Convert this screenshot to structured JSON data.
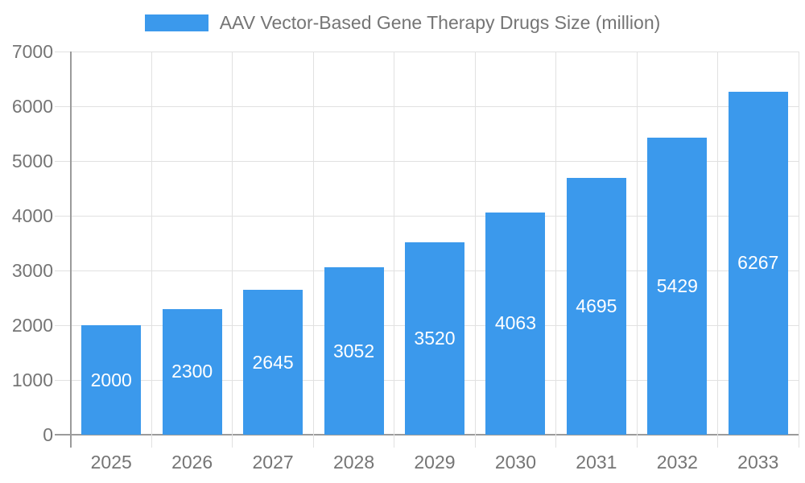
{
  "chart_data": {
    "type": "bar",
    "title": "AAV Vector-Based Gene Therapy Drugs Size (million)",
    "legend_position": "top",
    "categories": [
      "2025",
      "2026",
      "2027",
      "2028",
      "2029",
      "2030",
      "2031",
      "2032",
      "2033"
    ],
    "series": [
      {
        "name": "AAV Vector-Based Gene Therapy Drugs Size (million)",
        "values": [
          2000,
          2300,
          2645,
          3052,
          3520,
          4063,
          4695,
          5429,
          6267
        ]
      }
    ],
    "bar_value_labels": [
      "2000",
      "2300",
      "2645",
      "3052",
      "3520",
      "4063",
      "4695",
      "5429",
      "6267"
    ],
    "xlabel": "",
    "ylabel": "",
    "ylim": [
      0,
      7000
    ],
    "ytick_step": 1000,
    "yticks": [
      0,
      1000,
      2000,
      3000,
      4000,
      5000,
      6000,
      7000
    ],
    "ytick_labels": [
      "0",
      "1000",
      "2000",
      "3000",
      "4000",
      "5000",
      "6000",
      "7000"
    ],
    "grid": true,
    "colors": {
      "bar": "#3B99EC",
      "bar_label": "#FFFFFF",
      "grid_line": "#E1E1E1",
      "axis_line": "#9B9B9B",
      "tick_label": "#757575",
      "legend_text": "#757575",
      "background": "#FFFFFF"
    }
  }
}
